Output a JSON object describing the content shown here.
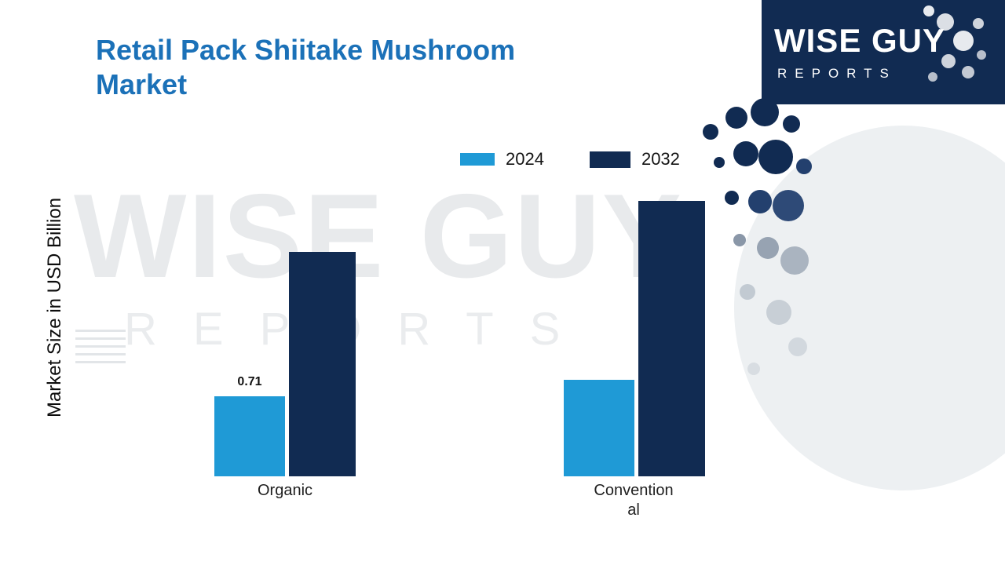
{
  "chart_data": {
    "type": "bar",
    "title": "Retail Pack Shiitake Mushroom Market",
    "categories": [
      "Organic",
      "Conventional"
    ],
    "series": [
      {
        "name": "2024",
        "color": "#1f9ad6",
        "values": [
          0.71,
          0.86
        ]
      },
      {
        "name": "2032",
        "color": "#112b52",
        "values": [
          2.0,
          2.45
        ]
      }
    ],
    "data_labels": [
      {
        "series_index": 0,
        "category_index": 0,
        "text": "0.71"
      }
    ],
    "xlabel": "",
    "ylabel": "Market Size in USD Billion",
    "ylim": [
      0,
      2.6
    ],
    "grid": false,
    "legend_position": "top-right"
  },
  "logo": {
    "line1": "WISE GUY",
    "line2": "REPORTS"
  },
  "watermark": {
    "line1": "WISE GUY",
    "line2": "REPORTS"
  },
  "colors": {
    "title": "#1b71b8",
    "background": "#ffffff",
    "logo_bg": "#112b52",
    "accent_light": "#1f9ad6",
    "accent_dark": "#112b52"
  }
}
